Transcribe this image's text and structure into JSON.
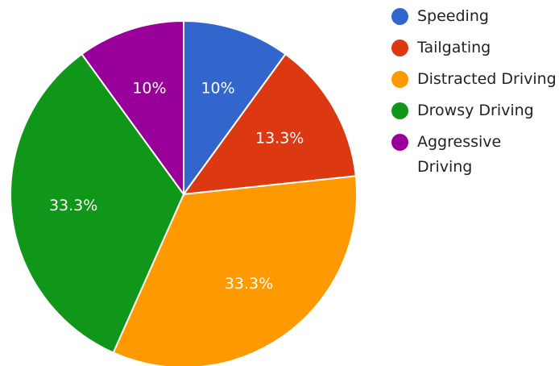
{
  "chart_data": {
    "type": "pie",
    "categories": [
      "Speeding",
      "Tailgating",
      "Distracted Driving",
      "Drowsy Driving",
      "Aggressive Driving"
    ],
    "values": [
      10,
      13.3,
      33.3,
      33.3,
      10
    ],
    "value_labels": [
      "10%",
      "13.3%",
      "33.3%",
      "33.3%",
      "10%"
    ],
    "colors": [
      "#3366cc",
      "#dc3912",
      "#ff9900",
      "#109618",
      "#990099"
    ],
    "legend": "right"
  }
}
